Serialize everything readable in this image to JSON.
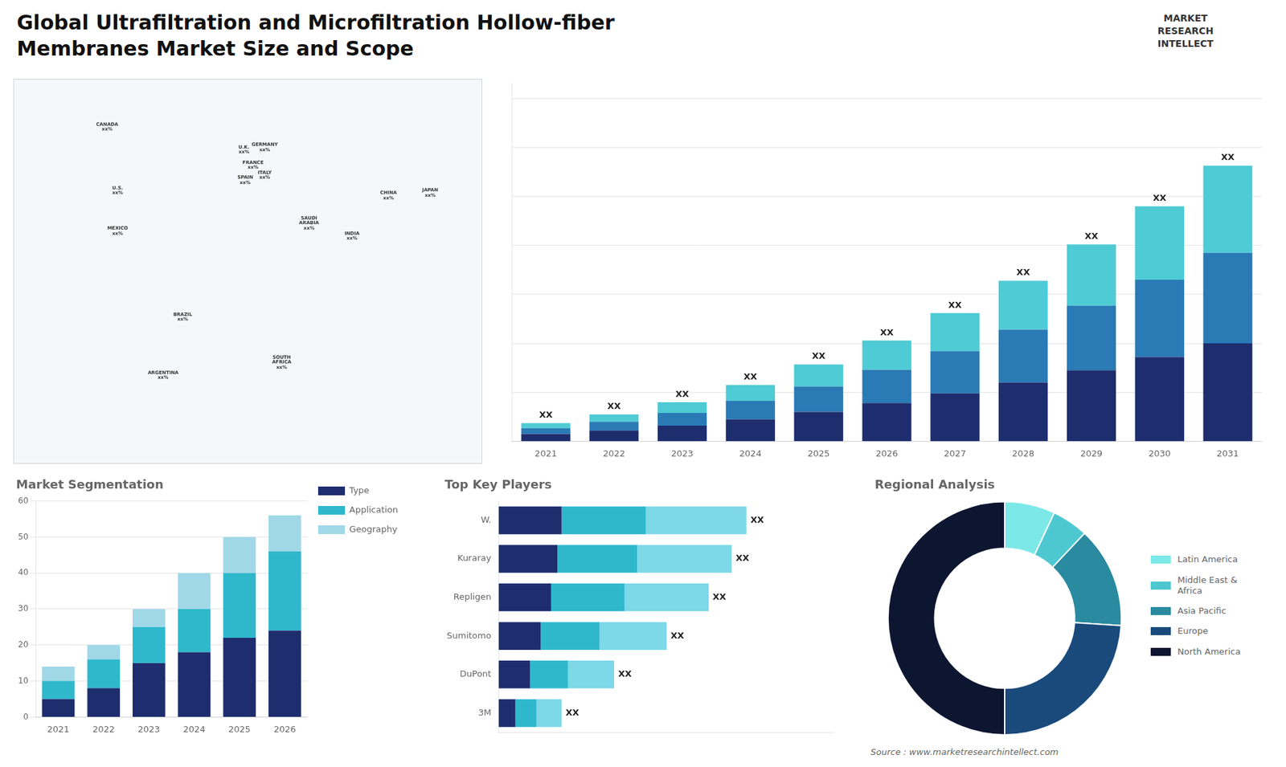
{
  "title": "Global Ultrafiltration and Microfiltration Hollow-fiber\nMembranes Market Size and Scope",
  "annotations": [
    "MARKET\nRESEARCH\nINTELLECT",
    "Source : www.marketresearchintellect.com"
  ],
  "chart_data": [
    {
      "type": "map",
      "xlim": [
        -180,
        180
      ],
      "ylim": [
        -70,
        82
      ],
      "tick_labels": false,
      "grid": false,
      "annotations": [
        {
          "text": "CANADA\nxx%",
          "x": -108,
          "y": 63
        },
        {
          "text": "U.S.\nxx%",
          "x": -100,
          "y": 38
        },
        {
          "text": "MEXICO\nxx%",
          "x": -100,
          "y": 22
        },
        {
          "text": "BRAZIL\nxx%",
          "x": -50,
          "y": -12
        },
        {
          "text": "ARGENTINA\nxx%",
          "x": -65,
          "y": -35
        },
        {
          "text": "U.K.\nxx%",
          "x": -3,
          "y": 54
        },
        {
          "text": "FRANCE\nxx%",
          "x": 4,
          "y": 48
        },
        {
          "text": "SPAIN\nxx%",
          "x": -2,
          "y": 42
        },
        {
          "text": "GERMANY\nxx%",
          "x": 13,
          "y": 55
        },
        {
          "text": "ITALY\nxx%",
          "x": 13,
          "y": 44
        },
        {
          "text": "SAUDI\nARABIA\nxx%",
          "x": 47,
          "y": 25
        },
        {
          "text": "SOUTH\nAFRICA\nxx%",
          "x": 26,
          "y": -30
        },
        {
          "text": "CHINA\nxx%",
          "x": 108,
          "y": 36
        },
        {
          "text": "INDIA\nxx%",
          "x": 80,
          "y": 20
        },
        {
          "text": "JAPAN\nxx%",
          "x": 140,
          "y": 37
        }
      ]
    },
    {
      "type": "bar",
      "stacked": true,
      "categories": [
        "2021",
        "2022",
        "2023",
        "2024",
        "2025",
        "2026",
        "2027",
        "2028",
        "2029",
        "2030",
        "2031"
      ],
      "series": [
        {
          "color": "#1e2d6e",
          "values": [
            1.5,
            2.2,
            3.2,
            4.5,
            6.0,
            7.8,
            9.8,
            12.0,
            14.5,
            17.2,
            20.0
          ]
        },
        {
          "color": "#2a7ab5",
          "values": [
            1.2,
            1.8,
            2.6,
            3.8,
            5.2,
            6.8,
            8.6,
            10.8,
            13.2,
            15.8,
            18.5
          ]
        },
        {
          "color": "#4ecbd4",
          "values": [
            1.0,
            1.5,
            2.2,
            3.2,
            4.5,
            6.0,
            7.8,
            10.0,
            12.5,
            15.0,
            17.8
          ]
        }
      ],
      "ylim": [
        0,
        73.19
      ],
      "yticks": [
        0,
        10,
        20,
        30,
        40,
        50,
        60,
        70
      ],
      "grid": true,
      "tick_labels": "x",
      "annotations": [
        {
          "text": "XX",
          "category": "2021"
        },
        {
          "text": "XX",
          "category": "2022"
        },
        {
          "text": "XX",
          "category": "2023"
        },
        {
          "text": "XX",
          "category": "2024"
        },
        {
          "text": "XX",
          "category": "2025"
        },
        {
          "text": "XX",
          "category": "2026"
        },
        {
          "text": "XX",
          "category": "2027"
        },
        {
          "text": "XX",
          "category": "2028"
        },
        {
          "text": "XX",
          "category": "2029"
        },
        {
          "text": "XX",
          "category": "2030"
        },
        {
          "text": "XX",
          "category": "2031"
        }
      ]
    },
    {
      "type": "bar",
      "title": "Market Segmentation",
      "stacked": true,
      "categories": [
        "2021",
        "2022",
        "2023",
        "2024",
        "2025",
        "2026"
      ],
      "series": [
        {
          "name": "Type",
          "color": "#1e2d6e",
          "values": [
            5,
            8,
            15,
            18,
            22,
            24
          ]
        },
        {
          "name": "Application",
          "color": "#2fb8cc",
          "values": [
            5,
            8,
            10,
            12,
            18,
            22
          ]
        },
        {
          "name": "Geography",
          "color": "#a0d8e8",
          "values": [
            4,
            4,
            5,
            10,
            10,
            10
          ]
        }
      ],
      "ylim": [
        0,
        60
      ],
      "yticks": [
        0,
        10,
        20,
        30,
        40,
        50,
        60
      ],
      "grid": true,
      "legend": "right"
    },
    {
      "type": "bar",
      "title": "Top Key Players",
      "orientation": "horizontal",
      "stacked": true,
      "categories": [
        "W.",
        "Kuraray",
        "Repligen",
        "Sumitomo",
        "DuPont",
        "3M"
      ],
      "series": [
        {
          "color": "#1e2d6e",
          "values": [
            3.0,
            2.8,
            2.5,
            2.0,
            1.5,
            0.8
          ]
        },
        {
          "color": "#2fb8cc",
          "values": [
            4.0,
            3.8,
            3.5,
            2.8,
            1.8,
            1.0
          ]
        },
        {
          "color": "#7dd8e8",
          "values": [
            4.8,
            4.5,
            4.0,
            3.2,
            2.2,
            1.2
          ]
        }
      ],
      "xlim": [
        0,
        15.93
      ],
      "grid": false,
      "tick_labels": "y",
      "annotations": [
        {
          "text": "XX",
          "category": "W."
        },
        {
          "text": "XX",
          "category": "Kuraray"
        },
        {
          "text": "XX",
          "category": "Repligen"
        },
        {
          "text": "XX",
          "category": "Sumitomo"
        },
        {
          "text": "XX",
          "category": "DuPont"
        },
        {
          "text": "XX",
          "category": "3M"
        }
      ]
    },
    {
      "type": "doughnut",
      "title": "Regional Analysis",
      "categories": [
        "Latin America",
        "Middle East &\nAfrica",
        "Asia Pacific",
        "Europe",
        "North America"
      ],
      "values": [
        7,
        5,
        14,
        24,
        50
      ],
      "colors": [
        "#7de8e8",
        "#4dc8d0",
        "#2a8aa0",
        "#1a4a7b",
        "#0d1630"
      ],
      "legend": "right"
    }
  ]
}
